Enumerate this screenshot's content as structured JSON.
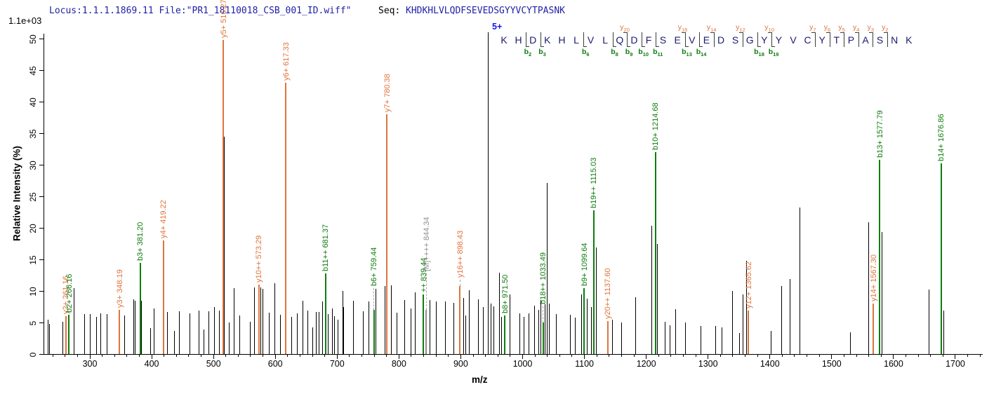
{
  "header": {
    "locus_file": "Locus:1.1.1.1869.11 File:\"PR1_18110018_CSB_001_ID.wiff\"",
    "seq_label": "Seq:",
    "sequence": "KHDKHLVLQDFSEVEDSGYYVCYTPASNK"
  },
  "colors": {
    "b_ion": "#0e7d0e",
    "y_ion": "#e0743c",
    "neutral_M": "#8f8f8f",
    "noise": "#000000",
    "precursor_label": "#1414e6",
    "header_blue": "#2121a8",
    "sequence_navy": "#1b1b6e"
  },
  "precursor": {
    "label": "5+",
    "mz": 944.4,
    "intensity": 51
  },
  "axis": {
    "y_scale_label": "1.1e+03",
    "y_ticks": [
      0,
      5,
      10,
      15,
      20,
      25,
      30,
      35,
      40,
      45,
      50
    ],
    "x_major_ticks": [
      300,
      400,
      500,
      600,
      700,
      800,
      900,
      1000,
      1100,
      1200,
      1300,
      1400,
      1500,
      1600,
      1700
    ],
    "x_minor_start": 240,
    "x_minor_end": 1740,
    "x_minor_step": 20
  },
  "chart_data": {
    "type": "bar",
    "subtype": "ms2-centroid-spectrum",
    "title": "",
    "xlabel": "m/z",
    "ylabel": "Relative  Intensity (%)",
    "xlim": [
      225,
      1745
    ],
    "ylim": [
      0,
      50
    ],
    "grid": false,
    "legend": "none",
    "labeled_ions": [
      {
        "mz": 261.16,
        "i": 6.0,
        "color": "y",
        "label": "y2+ 261.16"
      },
      {
        "mz": 266.16,
        "i": 6.2,
        "color": "b",
        "label": "b2+ 266.16"
      },
      {
        "mz": 348.19,
        "i": 7.0,
        "color": "y",
        "label": "y3+ 348.19"
      },
      {
        "mz": 381.2,
        "i": 14.4,
        "color": "b",
        "label": "b3+ 381.20"
      },
      {
        "mz": 419.22,
        "i": 18.0,
        "color": "y",
        "label": "y4+ 419.22"
      },
      {
        "mz": 516.27,
        "i": 49.8,
        "color": "y",
        "label": "y5+ 516.27"
      },
      {
        "mz": 573.29,
        "i": 11.0,
        "color": "y",
        "label": "y10++ 573.29"
      },
      {
        "mz": 617.33,
        "i": 43.0,
        "color": "y",
        "label": "y6+ 617.33"
      },
      {
        "mz": 681.37,
        "i": 12.8,
        "color": "b",
        "label": "b11++ 681.37"
      },
      {
        "mz": 759.44,
        "i": 7.0,
        "color": "b",
        "label": "b6+ 759.44",
        "li": 10.5
      },
      {
        "mz": 780.38,
        "i": 38.0,
        "color": "y",
        "label": "y7+ 780.38"
      },
      {
        "mz": 839.44,
        "i": 9.5,
        "color": "b",
        "label": "++ 839.44"
      },
      {
        "mz": 844.34,
        "i": 7.0,
        "color": "M",
        "label": "[M]++++ 844.34",
        "li": 12.8
      },
      {
        "mz": 898.43,
        "i": 10.8,
        "color": "y",
        "label": "y16++ 898.43",
        "li": 11.8
      },
      {
        "mz": 971.5,
        "i": 6.1,
        "color": "b",
        "label": "b8+ 971.50"
      },
      {
        "mz": 1033.49,
        "i": 5.0,
        "color": "b",
        "label": "b18++ 1033.49",
        "li": 7.6
      },
      {
        "mz": 1099.64,
        "i": 10.5,
        "color": "b",
        "label": "b9+ 1099.64"
      },
      {
        "mz": 1115.03,
        "i": 22.8,
        "color": "b",
        "label": "b19++ 1115.03"
      },
      {
        "mz": 1137.6,
        "i": 5.2,
        "color": "y",
        "label": "y20++ 1137.60"
      },
      {
        "mz": 1214.68,
        "i": 32.0,
        "color": "b",
        "label": "b10+ 1214.68"
      },
      {
        "mz": 1365.62,
        "i": 6.9,
        "color": "y",
        "label": "y12+ 1365.62"
      },
      {
        "mz": 1567.3,
        "i": 8.0,
        "color": "y",
        "label": "y14+ 1567.30"
      },
      {
        "mz": 1577.79,
        "i": 30.8,
        "color": "b",
        "label": "b13+ 1577.79"
      },
      {
        "mz": 1676.86,
        "i": 30.2,
        "color": "b",
        "label": "b14+ 1676.86"
      }
    ],
    "noise_peaks": [
      [
        232,
        5.5
      ],
      [
        235,
        4.8
      ],
      [
        256,
        5.1
      ],
      [
        274,
        10.5
      ],
      [
        292,
        6.3
      ],
      [
        300,
        6.3
      ],
      [
        311,
        5.9
      ],
      [
        318,
        6.5
      ],
      [
        328,
        6.3
      ],
      [
        356,
        6.1
      ],
      [
        371,
        8.7
      ],
      [
        373,
        8.5
      ],
      [
        384,
        8.4
      ],
      [
        398,
        4.1
      ],
      [
        404,
        7.2
      ],
      [
        425,
        6.7
      ],
      [
        437,
        3.7
      ],
      [
        445,
        6.8
      ],
      [
        462,
        6.4
      ],
      [
        477,
        6.9
      ],
      [
        485,
        3.9
      ],
      [
        493,
        6.8
      ],
      [
        502,
        7.4
      ],
      [
        509,
        6.9
      ],
      [
        517.5,
        34.4
      ],
      [
        525,
        5
      ],
      [
        533,
        10.5
      ],
      [
        542,
        6.1
      ],
      [
        559,
        5.1
      ],
      [
        566,
        10.6
      ],
      [
        577,
        10.6
      ],
      [
        580,
        10.3
      ],
      [
        590,
        6.6
      ],
      [
        599,
        11.2
      ],
      [
        608,
        6.2
      ],
      [
        626,
        5.9
      ],
      [
        635,
        6.4
      ],
      [
        645,
        8.4
      ],
      [
        653,
        6.9
      ],
      [
        660,
        4.2
      ],
      [
        666,
        6.7
      ],
      [
        671,
        6.7
      ],
      [
        676,
        8.3
      ],
      [
        686,
        6.3
      ],
      [
        692,
        7.2
      ],
      [
        696,
        6
      ],
      [
        701,
        5.5
      ],
      [
        709,
        10
      ],
      [
        711,
        7.5
      ],
      [
        726,
        8.5
      ],
      [
        742,
        6.8
      ],
      [
        751,
        8.3
      ],
      [
        763,
        10.3
      ],
      [
        777,
        10.8
      ],
      [
        788,
        10.9
      ],
      [
        797,
        6.6
      ],
      [
        809,
        8.6
      ],
      [
        819,
        7.2
      ],
      [
        826,
        9.8
      ],
      [
        850,
        8.6
      ],
      [
        860,
        8.3
      ],
      [
        875,
        8.3
      ],
      [
        889,
        8.1
      ],
      [
        905,
        8.9
      ],
      [
        908,
        6.1
      ],
      [
        914,
        10.1
      ],
      [
        928,
        8.7
      ],
      [
        936,
        7.4
      ],
      [
        944.4,
        51
      ],
      [
        949,
        8
      ],
      [
        954,
        7.6
      ],
      [
        962,
        12.9
      ],
      [
        966,
        5.9
      ],
      [
        980,
        9.4
      ],
      [
        995,
        6.4
      ],
      [
        1002,
        5.9
      ],
      [
        1010,
        6.4
      ],
      [
        1019,
        7.7
      ],
      [
        1026,
        7
      ],
      [
        1030,
        8.6
      ],
      [
        1036,
        7.9
      ],
      [
        1040,
        27.1
      ],
      [
        1043,
        8
      ],
      [
        1054,
        6.3
      ],
      [
        1077,
        6.2
      ],
      [
        1085,
        5.8
      ],
      [
        1095,
        9.4
      ],
      [
        1104,
        8.8
      ],
      [
        1111,
        7.4
      ],
      [
        1119,
        16.9
      ],
      [
        1145,
        5.5
      ],
      [
        1160,
        5
      ],
      [
        1183,
        9
      ],
      [
        1209,
        20.3
      ],
      [
        1218,
        17.4
      ],
      [
        1230,
        5.1
      ],
      [
        1238,
        4.6
      ],
      [
        1248,
        7.1
      ],
      [
        1263,
        5
      ],
      [
        1288,
        4.5
      ],
      [
        1312,
        4.4
      ],
      [
        1322,
        4.2
      ],
      [
        1340,
        10
      ],
      [
        1351,
        3.3
      ],
      [
        1357,
        9.4
      ],
      [
        1362,
        14.8
      ],
      [
        1402,
        3.7
      ],
      [
        1419,
        10.8
      ],
      [
        1433,
        11.9
      ],
      [
        1448,
        23.2
      ],
      [
        1530,
        3.5
      ],
      [
        1560,
        20.9
      ],
      [
        1581,
        19.3
      ],
      [
        1657,
        10.2
      ],
      [
        1681,
        6.9
      ]
    ]
  },
  "sequence_map": {
    "letters": "KHDKHLVLQDFSEVEDSGYYVCYTPASNK",
    "cuts": [
      {
        "after": 2,
        "b": 2
      },
      {
        "after": 3,
        "b": 3
      },
      {
        "after": 6,
        "b": 6
      },
      {
        "after": 8,
        "b": 8
      },
      {
        "after": 9,
        "b": 9,
        "y": 20
      },
      {
        "after": 10,
        "b": 10
      },
      {
        "after": 11,
        "b": 11
      },
      {
        "after": 13,
        "b": 13,
        "y": 16
      },
      {
        "after": 14,
        "b": 14
      },
      {
        "after": 15,
        "y": 14
      },
      {
        "after": 17,
        "y": 12
      },
      {
        "after": 18,
        "b": 18
      },
      {
        "after": 19,
        "b": 19,
        "y": 10
      },
      {
        "after": 22,
        "y": 7
      },
      {
        "after": 23,
        "y": 6
      },
      {
        "after": 24,
        "y": 5
      },
      {
        "after": 25,
        "y": 4
      },
      {
        "after": 26,
        "y": 3
      },
      {
        "after": 27,
        "y": 2
      }
    ]
  }
}
